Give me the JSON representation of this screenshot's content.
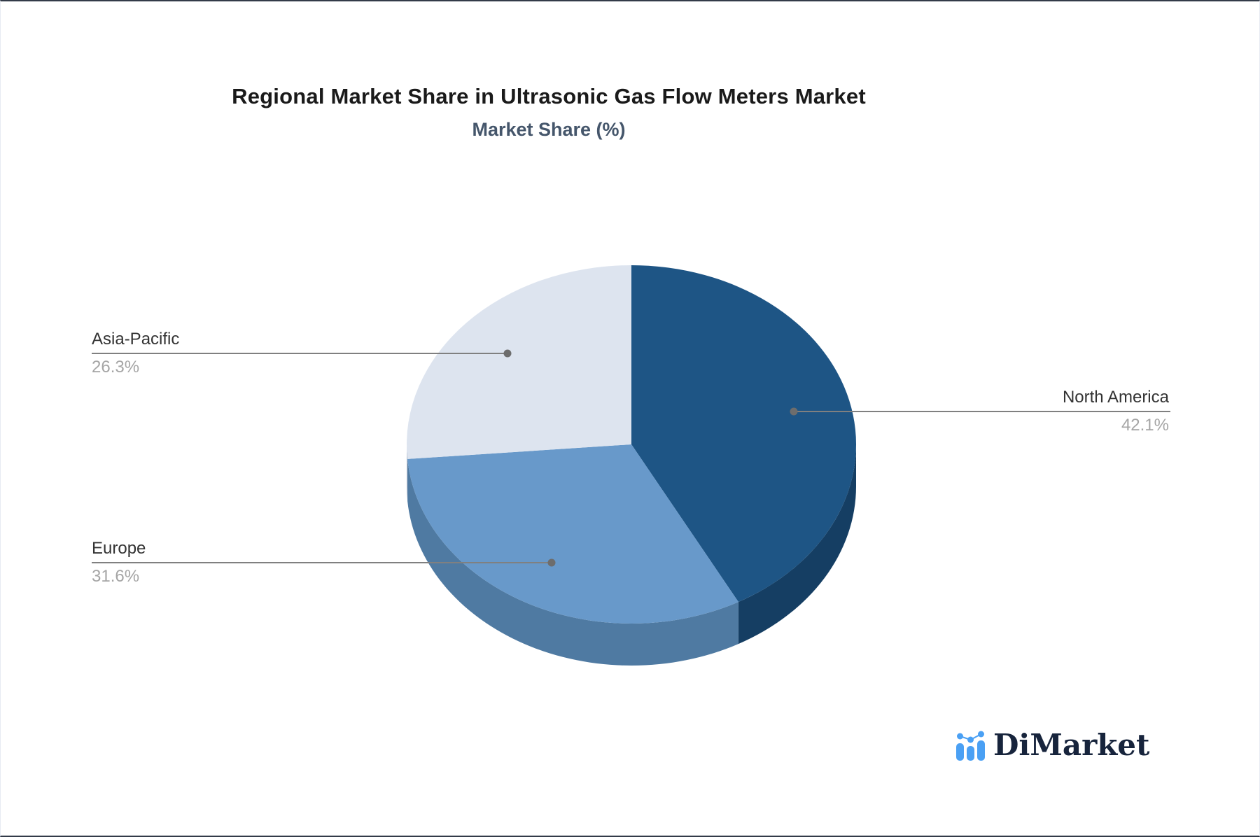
{
  "header": {
    "title": "Regional Market Share in Ultrasonic Gas Flow Meters Market",
    "subtitle": "Market Share (%)"
  },
  "chart_data": {
    "type": "pie",
    "style": "3d",
    "title": "Regional Market Share in Ultrasonic Gas Flow Meters Market",
    "subtitle": "Market Share (%)",
    "unit": "%",
    "start_angle_deg": 0,
    "direction": "clockwise",
    "legend_position": "none",
    "labels": [
      "North America",
      "Europe",
      "Asia-Pacific"
    ],
    "values": [
      42.1,
      31.6,
      26.3
    ],
    "value_texts": [
      "42.1%",
      "31.6%",
      "26.3%"
    ],
    "colors": [
      "#1e5585",
      "#6899ca",
      "#dde4ef"
    ],
    "side_colors": [
      "#153e63",
      "#4f7aa2",
      "#a9b6c8"
    ]
  },
  "callouts": {
    "north_america": {
      "name": "North America",
      "value": "42.1%"
    },
    "europe": {
      "name": "Europe",
      "value": "31.6%"
    },
    "asia_pacific": {
      "name": "Asia-Pacific",
      "value": "26.3%"
    }
  },
  "logo": {
    "text": "DiMarket"
  },
  "theme": {
    "logo_blue": "#4aa0f4",
    "logo_text_color": "#17243c",
    "leader_line_color": "#808080",
    "leader_dot_color": "#6d6d6d",
    "label_color": "#333333",
    "value_color": "#a5a5a5",
    "subtitle_color": "#45566b"
  }
}
